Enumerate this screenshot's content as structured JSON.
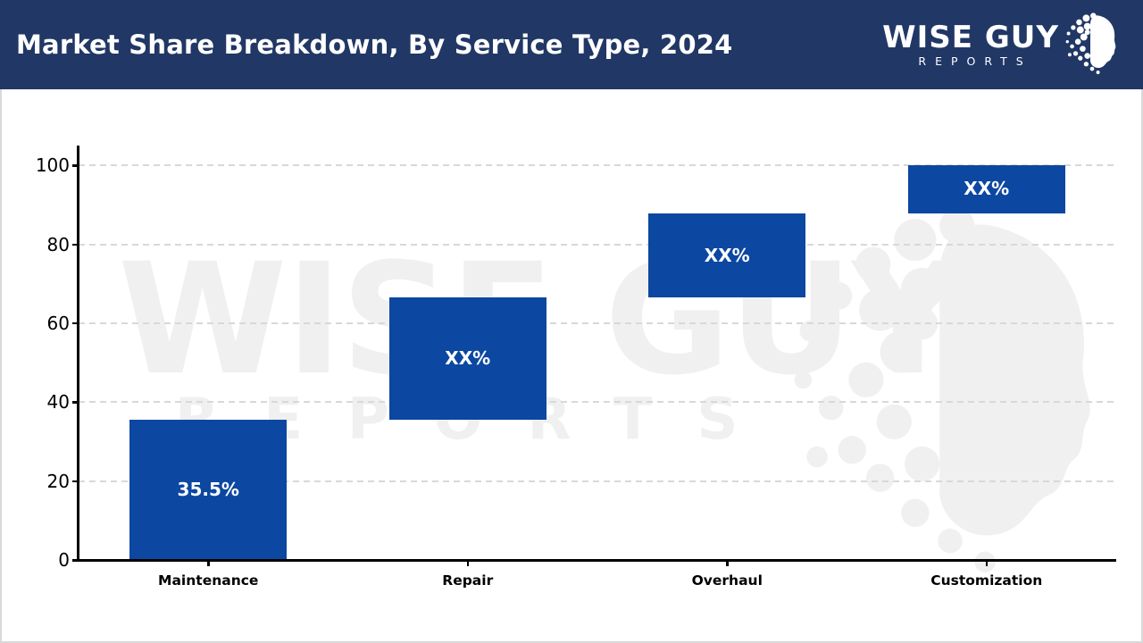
{
  "header": {
    "title": "Market Share Breakdown, By Service Type, 2024",
    "logo": {
      "line1": "WISE GUY",
      "line2": "REPORTS"
    }
  },
  "watermark": {
    "line1": "WISE GUY",
    "line2": "REPORTS"
  },
  "chart_data": {
    "type": "bar",
    "subtype": "waterfall",
    "title": "Market Share Breakdown, By Service Type, 2024",
    "categories": [
      "Maintenance",
      "Repair",
      "Overhaul",
      "Customization"
    ],
    "segments": [
      {
        "category": "Maintenance",
        "start": 0,
        "end": 35.5,
        "label": "35.5%"
      },
      {
        "category": "Repair",
        "start": 35.5,
        "end": 66.5,
        "label": "XX%"
      },
      {
        "category": "Overhaul",
        "start": 66.5,
        "end": 87.8,
        "label": "XX%"
      },
      {
        "category": "Customization",
        "start": 87.8,
        "end": 100,
        "label": "XX%"
      }
    ],
    "yticks": [
      0,
      20,
      40,
      60,
      80,
      100
    ],
    "ylim": [
      0,
      100
    ],
    "xlabel": "",
    "ylabel": "",
    "grid": true,
    "legend": false,
    "bar_color": "#0c47a1",
    "label_color": "#ffffff"
  },
  "colors": {
    "header_bg": "#213765",
    "bar": "#0c47a1",
    "watermark": "#f0f0f0",
    "gridline": "#d8d8d8",
    "axis": "#000000"
  }
}
